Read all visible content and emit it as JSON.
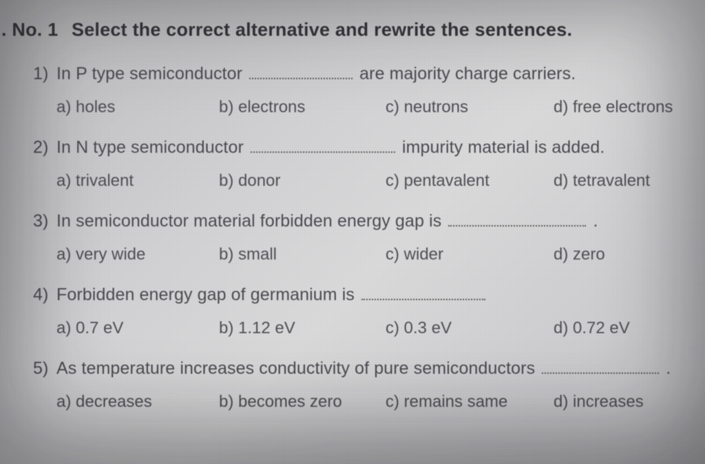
{
  "heading_prefix": ". No. 1",
  "heading_text": "Select the correct alternative and rewrite the sentences.",
  "blank_widths": {
    "q1": 150,
    "q2": 210,
    "q3": 200,
    "q4": 180,
    "q5": 170
  },
  "questions": [
    {
      "n": "1)",
      "pre": "In P type semiconductor ",
      "post": " are majority charge carriers.",
      "opts": {
        "a": "a) holes",
        "b": "b) electrons",
        "c": "c) neutrons",
        "d": "d) free electrons"
      }
    },
    {
      "n": "2)",
      "pre": "In N type semiconductor ",
      "post": " impurity material is added.",
      "opts": {
        "a": "a) trivalent",
        "b": "b) donor",
        "c": "c) pentavalent",
        "d": "d) tetravalent"
      }
    },
    {
      "n": "3)",
      "pre": "In semiconductor material forbidden energy gap is ",
      "post": " .",
      "opts": {
        "a": "a) very wide",
        "b": "b) small",
        "c": "c) wider",
        "d": "d) zero"
      }
    },
    {
      "n": "4)",
      "pre": "Forbidden energy gap of germanium is ",
      "post": "",
      "opts": {
        "a": "a) 0.7 eV",
        "b": "b) 1.12 eV",
        "c": "c) 0.3 eV",
        "d": "d) 0.72 eV"
      }
    },
    {
      "n": "5)",
      "pre": "As temperature increases conductivity of pure semiconductors ",
      "post": " .",
      "opts": {
        "a": "a) decreases",
        "b": "b) becomes zero",
        "c": "c) remains same",
        "d": "d) increases"
      }
    }
  ]
}
